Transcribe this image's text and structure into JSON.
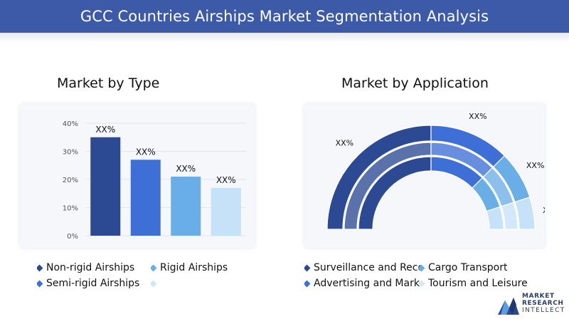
{
  "header": {
    "title": "GCC Countries Airships Market Segmentation Analysis"
  },
  "left": {
    "title": "Market by Type",
    "legend": [
      {
        "label": "Non-rigid Airships",
        "color": "#2c4a94"
      },
      {
        "label": "Rigid Airships",
        "color": "#6aaee8"
      },
      {
        "label": "Semi-rigid Airships",
        "color": "#3d6fd6"
      },
      {
        "label": "",
        "color": "#d2e8fa"
      }
    ]
  },
  "right": {
    "title": "Market by Application",
    "legend": [
      {
        "label": "Surveillance and Reco",
        "color": "#2c4a94"
      },
      {
        "label": "Cargo Transport",
        "color": "#6aaee8"
      },
      {
        "label": "Advertising and Marke",
        "color": "#3d6fd6"
      },
      {
        "label": "Tourism and Leisure",
        "color": "#d2e8fa"
      }
    ]
  },
  "logo": {
    "line1": "MARKET",
    "line2": "RESEARCH",
    "line3": "INTELLECT"
  },
  "chart_data": [
    {
      "type": "bar",
      "title": "Market by Type",
      "categories": [
        "Non-rigid Airships",
        "Rigid Airships",
        "Semi-rigid Airships",
        ""
      ],
      "values": [
        35,
        27,
        21,
        17
      ],
      "data_labels": [
        "XX%",
        "XX%",
        "XX%",
        "XX%"
      ],
      "colors": [
        "#2c4a94",
        "#3d6fd6",
        "#6aaee8",
        "#c6e2f8"
      ],
      "yticks": [
        "0%",
        "10%",
        "20%",
        "30%",
        "40%"
      ],
      "ylim": [
        0,
        40
      ],
      "grid": true,
      "legend": "bottom"
    },
    {
      "type": "pie",
      "style": "half-donut",
      "title": "Market by Application",
      "categories": [
        "Surveillance and Reco",
        "Cargo Transport",
        "Advertising and Marke",
        "Tourism and Leisure"
      ],
      "values": [
        50,
        25,
        15,
        10
      ],
      "data_labels": [
        "XX%",
        "XX%",
        "XX%",
        "XX%"
      ],
      "colors": [
        "#2c4a94",
        "#3d6fd6",
        "#6aaee8",
        "#c6e2f8"
      ],
      "legend": "bottom"
    }
  ]
}
